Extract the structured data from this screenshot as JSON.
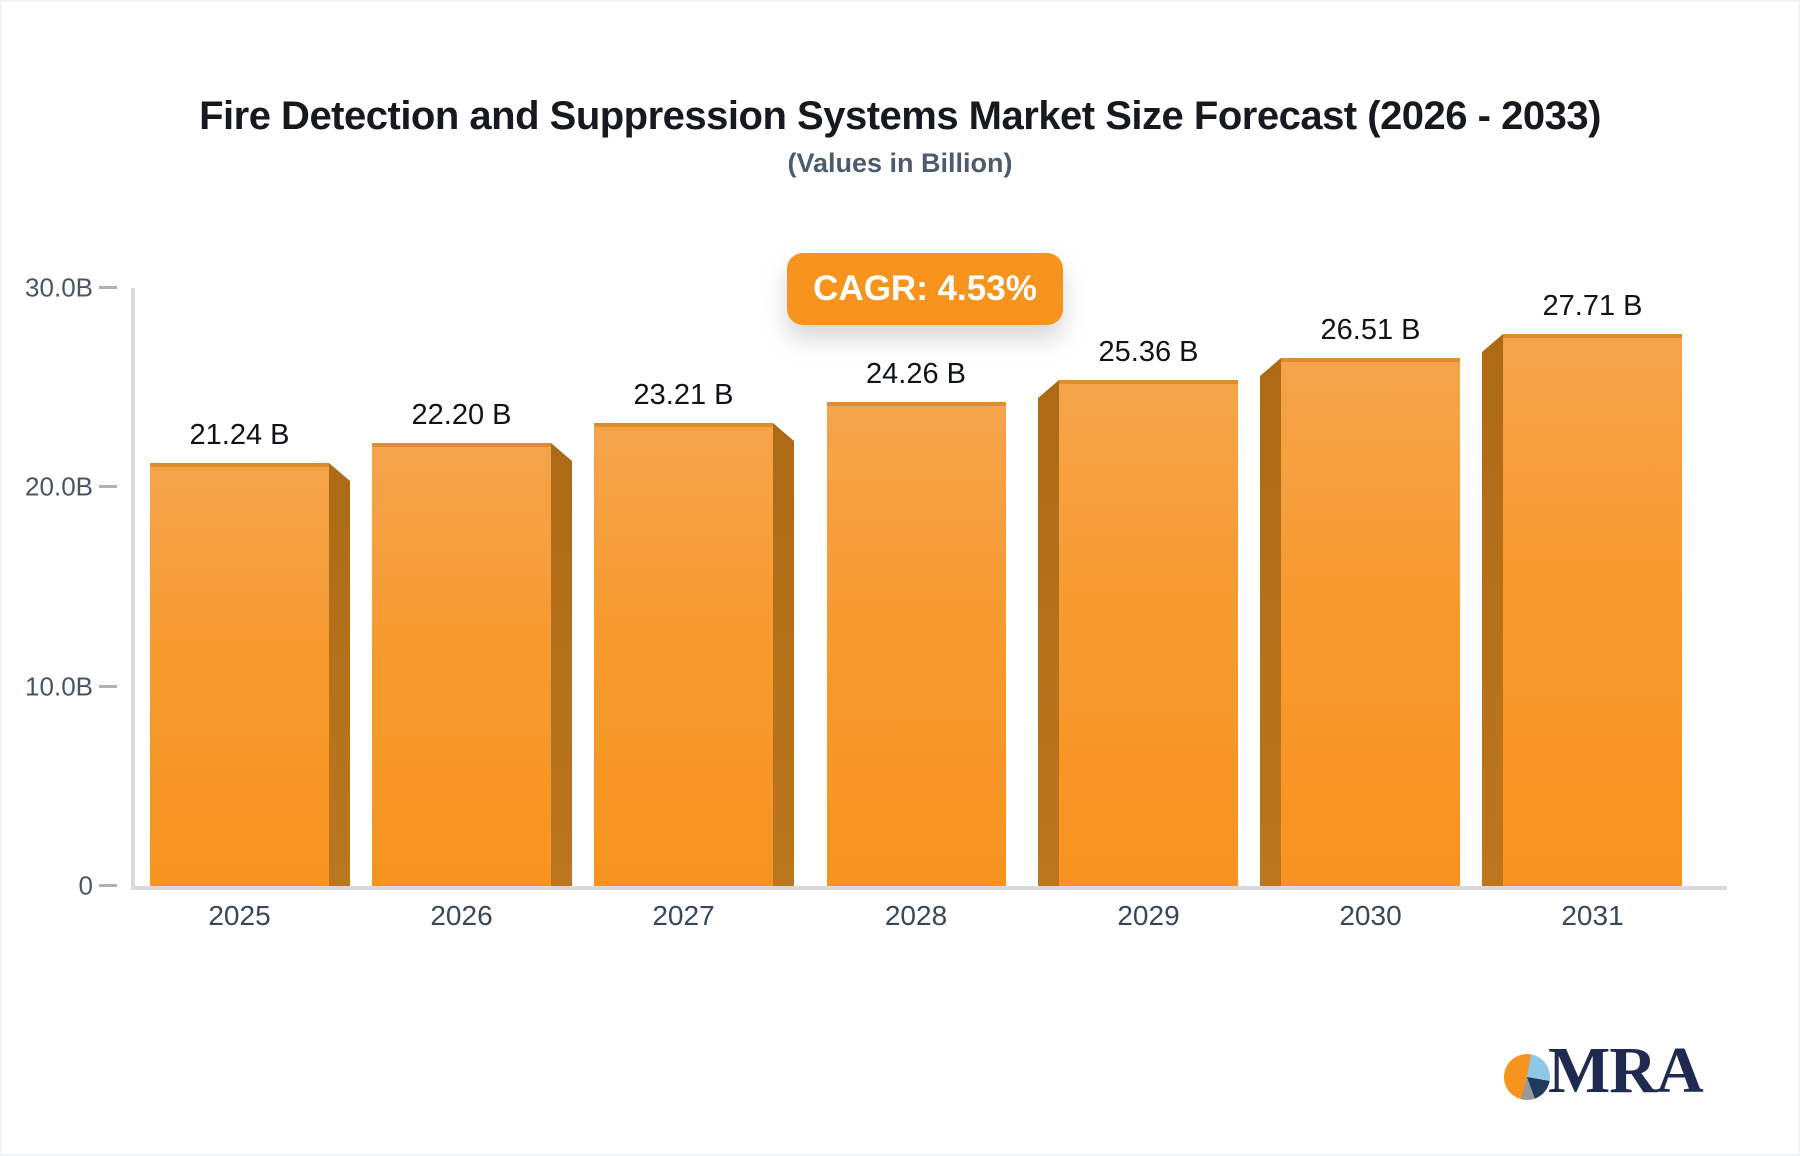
{
  "header": {
    "title": "Fire Detection and Suppression Systems Market Size Forecast (2026 - 2033)",
    "subtitle": "(Values in Billion)"
  },
  "badge": {
    "label": "CAGR: 4.53%",
    "bg_color": "#f7941e",
    "text_color": "#ffffff"
  },
  "chart_data": {
    "type": "bar",
    "title": "Fire Detection and Suppression Systems Market Size Forecast (2026 - 2033)",
    "subtitle": "(Values in Billion)",
    "categories": [
      "2025",
      "2026",
      "2027",
      "2028",
      "2029",
      "2030",
      "2031"
    ],
    "values": [
      21.24,
      22.2,
      23.21,
      24.26,
      25.36,
      26.51,
      27.71
    ],
    "value_labels": [
      "21.24 B",
      "22.20 B",
      "23.21 B",
      "24.26 B",
      "25.36 B",
      "26.51 B",
      "27.71 B"
    ],
    "cagr_annotation": "CAGR: 4.53%",
    "xlabel": "",
    "ylabel": "",
    "ylim": [
      0,
      30
    ],
    "yticks": [
      {
        "label": "30.0B",
        "value": 30
      },
      {
        "label": "20.0B",
        "value": 20
      },
      {
        "label": "10.0B",
        "value": 10
      },
      {
        "label": "0",
        "value": 0
      }
    ],
    "grid": false,
    "legend": null,
    "style": "3d-bar-center-perspective",
    "colors": {
      "bar_face_top": "#f5a44b",
      "bar_face_bottom": "#f79320",
      "bar_face_top_edge": "#dd8c2e",
      "bar_side": "#b5701c",
      "axis_line": "#d8dadc",
      "tick_dash": "#abb2ba",
      "value_label": "#0f141a",
      "year_label": "#3a475a",
      "ytick_label": "#4a5666"
    }
  },
  "logo": {
    "text": "MRA",
    "text_color": "#1f2a50",
    "pie_colors": [
      "#f7941e",
      "#8ec8e6",
      "#1f3a5c",
      "#97999c"
    ]
  }
}
